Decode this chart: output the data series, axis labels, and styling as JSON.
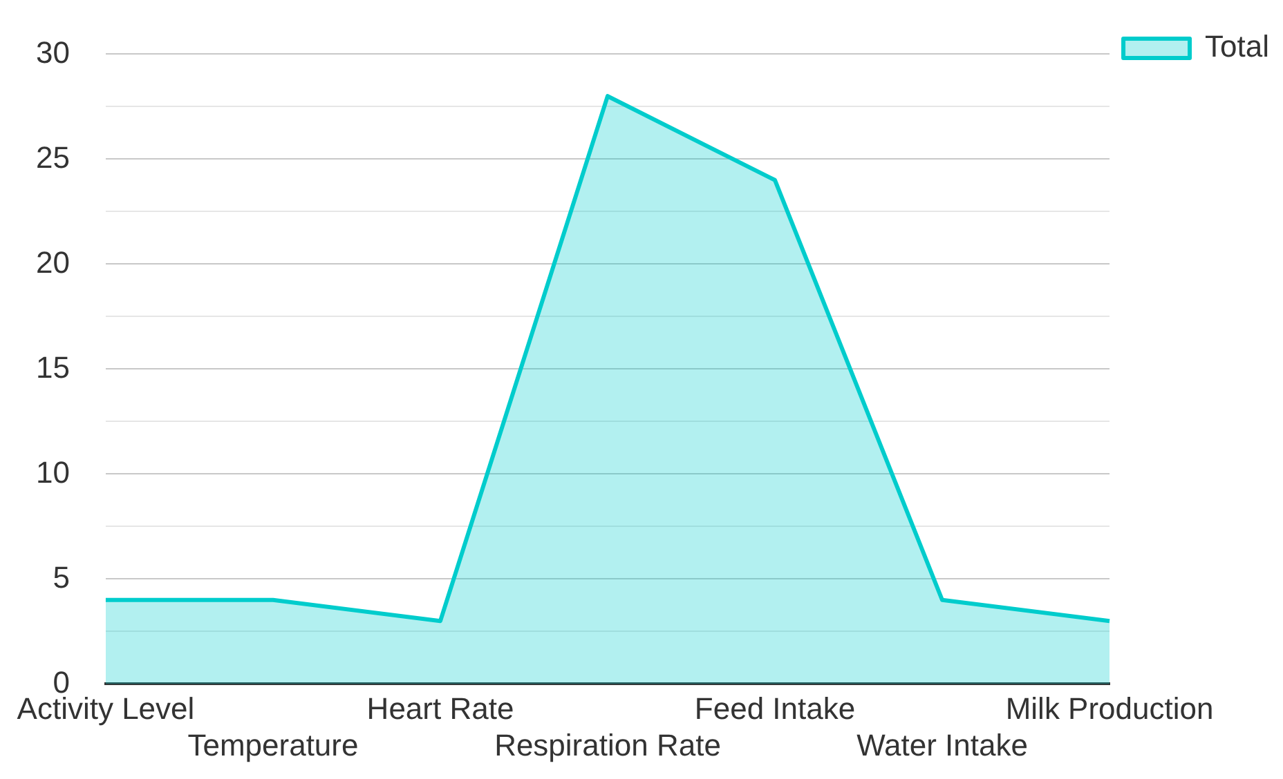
{
  "chart_data": {
    "type": "area",
    "categories": [
      "Activity Level",
      "Temperature",
      "Heart Rate",
      "Respiration Rate",
      "Feed Intake",
      "Water Intake",
      "Milk Production"
    ],
    "series": [
      {
        "name": "Total",
        "color": "#00cccc",
        "values": [
          4,
          4,
          3,
          28,
          24,
          4,
          3
        ]
      }
    ],
    "ylim": [
      0,
      30
    ],
    "yticks": [
      0,
      {
        "value": 2.5,
        "label": null
      },
      5,
      {
        "value": 7.5,
        "label": null
      },
      10,
      {
        "value": 12.5,
        "label": null
      },
      15,
      {
        "value": 17.5,
        "label": null
      },
      20,
      {
        "value": 22.5,
        "label": null
      },
      25,
      {
        "value": 27.5,
        "label": null
      },
      30
    ],
    "grid": "y",
    "legend": "top right"
  }
}
